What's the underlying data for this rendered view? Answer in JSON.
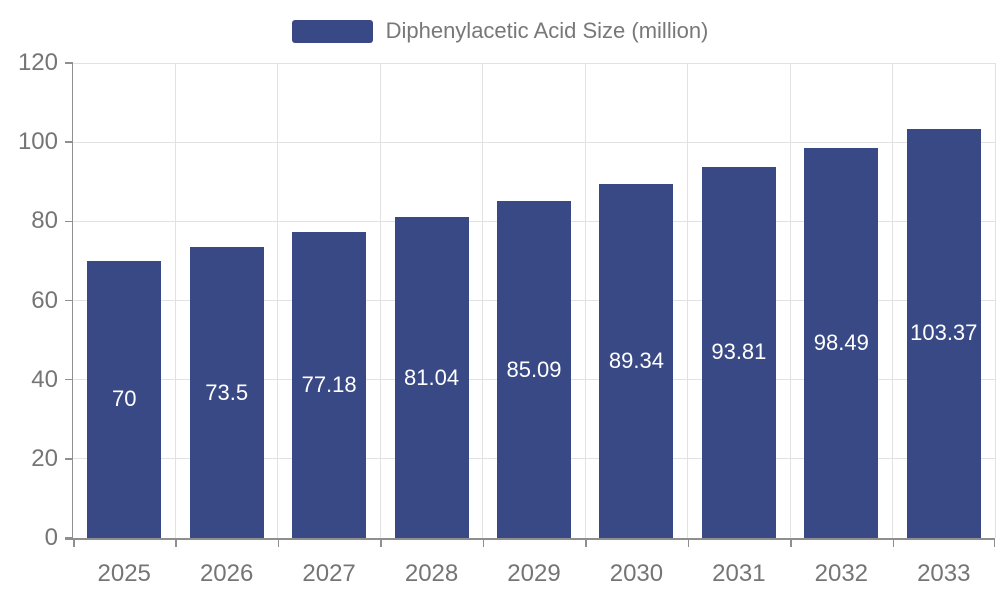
{
  "legend": {
    "label": "Diphenylacetic Acid Size (million)"
  },
  "colors": {
    "bar": "#394986",
    "grid": "#e2e2e2",
    "axis": "#8f8f8f",
    "tick_label": "#757575",
    "legend_text": "#787878",
    "value_label": "#ffffff"
  },
  "chart_data": {
    "type": "bar",
    "title": "Diphenylacetic Acid Size (million)",
    "series_name": "Diphenylacetic Acid Size (million)",
    "categories": [
      "2025",
      "2026",
      "2027",
      "2028",
      "2029",
      "2030",
      "2031",
      "2032",
      "2033"
    ],
    "values": [
      70,
      73.5,
      77.18,
      81.04,
      85.09,
      89.34,
      93.81,
      98.49,
      103.37
    ],
    "value_labels": [
      "70",
      "73.5",
      "77.18",
      "81.04",
      "85.09",
      "89.34",
      "93.81",
      "98.49",
      "103.37"
    ],
    "xlabel": "",
    "ylabel": "",
    "ylim": [
      0,
      120
    ],
    "yticks": [
      0,
      20,
      40,
      60,
      80,
      100,
      120
    ],
    "grid": true,
    "legend_position": "top",
    "value_label_position": "inside-center"
  }
}
